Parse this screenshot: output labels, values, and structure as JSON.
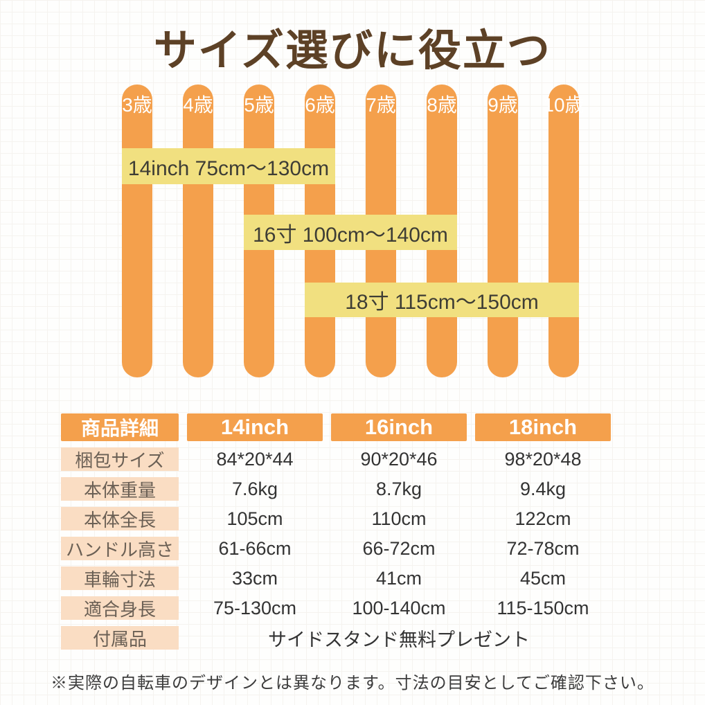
{
  "title": "サイズ選びに役立つ",
  "age_chart": {
    "ages": [
      "3歳",
      "4歳",
      "5歳",
      "6歳",
      "7歳",
      "8歳",
      "9歳",
      "10歳"
    ],
    "bands": [
      {
        "label": "14inch 75cm〜130cm"
      },
      {
        "label": "16寸 100cm〜140cm"
      },
      {
        "label": "18寸 115cm〜150cm"
      }
    ]
  },
  "table": {
    "header": {
      "label": "商品詳細",
      "columns": [
        "14inch",
        "16inch",
        "18inch"
      ]
    },
    "rows": [
      {
        "label": "梱包サイズ",
        "values": [
          "84*20*44",
          "90*20*46",
          "98*20*48"
        ]
      },
      {
        "label": "本体重量",
        "values": [
          "7.6kg",
          "8.7kg",
          "9.4kg"
        ]
      },
      {
        "label": "本体全長",
        "values": [
          "105cm",
          "110cm",
          "122cm"
        ]
      },
      {
        "label": "ハンドル高さ",
        "values": [
          "61-66cm",
          "66-72cm",
          "72-78cm"
        ]
      },
      {
        "label": "車輪寸法",
        "values": [
          "33cm",
          "41cm",
          "45cm"
        ]
      },
      {
        "label": "適合身長",
        "values": [
          "75-130cm",
          "100-140cm",
          "115-150cm"
        ]
      }
    ],
    "accessory_row": {
      "label": "付属品",
      "value": "サイドスタンド無料プレゼント"
    }
  },
  "footer_note": "※実際の自転車のデザインとは異なります。寸法の目安としてご確認下さい。",
  "colors": {
    "bar_orange": "#f4a04c",
    "band_yellow": "#f1e080",
    "title_brown": "#5d4126",
    "row_label_bg": "#faddc3",
    "row_label_text": "#6b6055",
    "value_text": "#333333",
    "band_text": "#3e3d35",
    "header_text": "#ffffff"
  },
  "chart_data": [
    {
      "type": "bar",
      "subtype": "age-range-bands",
      "title": "サイズ選びに役立つ",
      "categories": [
        "3歳",
        "4歳",
        "5歳",
        "6歳",
        "7歳",
        "8歳",
        "9歳",
        "10歳"
      ],
      "series": [
        {
          "name": "14inch",
          "label": "14inch 75cm〜130cm",
          "age_span": [
            "3歳",
            "6歳"
          ],
          "height_cm": [
            75,
            130
          ]
        },
        {
          "name": "16寸",
          "label": "16寸 100cm〜140cm",
          "age_span": [
            "5歳",
            "8歳"
          ],
          "height_cm": [
            100,
            140
          ]
        },
        {
          "name": "18寸",
          "label": "18寸 115cm〜150cm",
          "age_span": [
            "6歳",
            "10歳"
          ],
          "height_cm": [
            115,
            150
          ]
        }
      ],
      "xlabel": "",
      "ylabel": "",
      "grid": false,
      "legend_position": "none"
    },
    {
      "type": "table",
      "columns": [
        "商品詳細",
        "14inch",
        "16inch",
        "18inch"
      ],
      "rows": [
        [
          "梱包サイズ",
          "84*20*44",
          "90*20*46",
          "98*20*48"
        ],
        [
          "本体重量",
          "7.6kg",
          "8.7kg",
          "9.4kg"
        ],
        [
          "本体全長",
          "105cm",
          "110cm",
          "122cm"
        ],
        [
          "ハンドル高さ",
          "61-66cm",
          "66-72cm",
          "72-78cm"
        ],
        [
          "車輪寸法",
          "33cm",
          "41cm",
          "45cm"
        ],
        [
          "適合身長",
          "75-130cm",
          "100-140cm",
          "115-150cm"
        ],
        [
          "付属品",
          "サイドスタンド無料プレゼント",
          "サイドスタンド無料プレゼント",
          "サイドスタンド無料プレゼント"
        ]
      ]
    }
  ]
}
